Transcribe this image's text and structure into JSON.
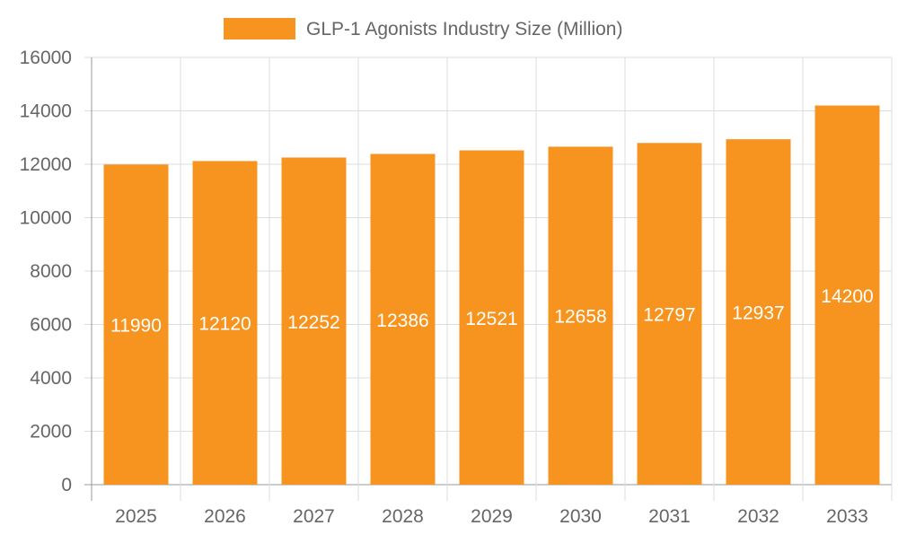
{
  "chart_data": {
    "type": "bar",
    "title": "",
    "xlabel": "",
    "ylabel": "",
    "categories": [
      "2025",
      "2026",
      "2027",
      "2028",
      "2029",
      "2030",
      "2031",
      "2032",
      "2033"
    ],
    "series": [
      {
        "name": "GLP-1 Agonists Industry Size (Million)",
        "values": [
          11990,
          12120,
          12252,
          12386,
          12521,
          12658,
          12797,
          12937,
          14200
        ],
        "color": "#f7941f"
      }
    ],
    "ylim": [
      0,
      16000
    ],
    "yticks": [
      0,
      2000,
      4000,
      6000,
      8000,
      10000,
      12000,
      14000,
      16000
    ],
    "grid": true,
    "legend": "top",
    "data_labels": true
  }
}
